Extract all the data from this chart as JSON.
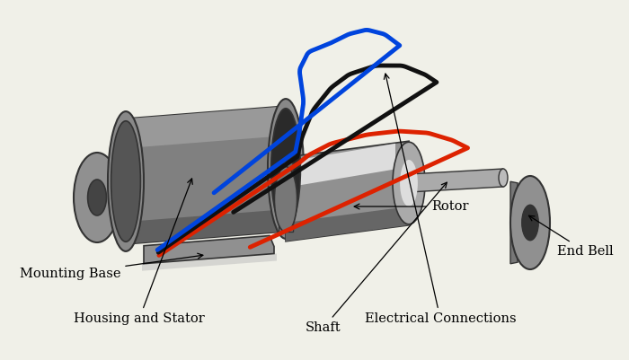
{
  "background_color": "#f0f0e8",
  "labels": {
    "housing_stator": "Housing and Stator",
    "electrical_connections": "Electrical Connections",
    "rotor": "Rotor",
    "end_bell": "End Bell",
    "mounting_base": "Mounting Base",
    "shaft": "Shaft"
  },
  "wire_colors": [
    "#0044dd",
    "#111111",
    "#dd2200"
  ],
  "gray_dark": "#555555",
  "gray_mid": "#888888",
  "gray_light": "#bbbbbb",
  "gray_lighter": "#dddddd",
  "gray_darkest": "#333333",
  "gray_rotor": "#999999",
  "gray_rotor_light": "#cccccc"
}
